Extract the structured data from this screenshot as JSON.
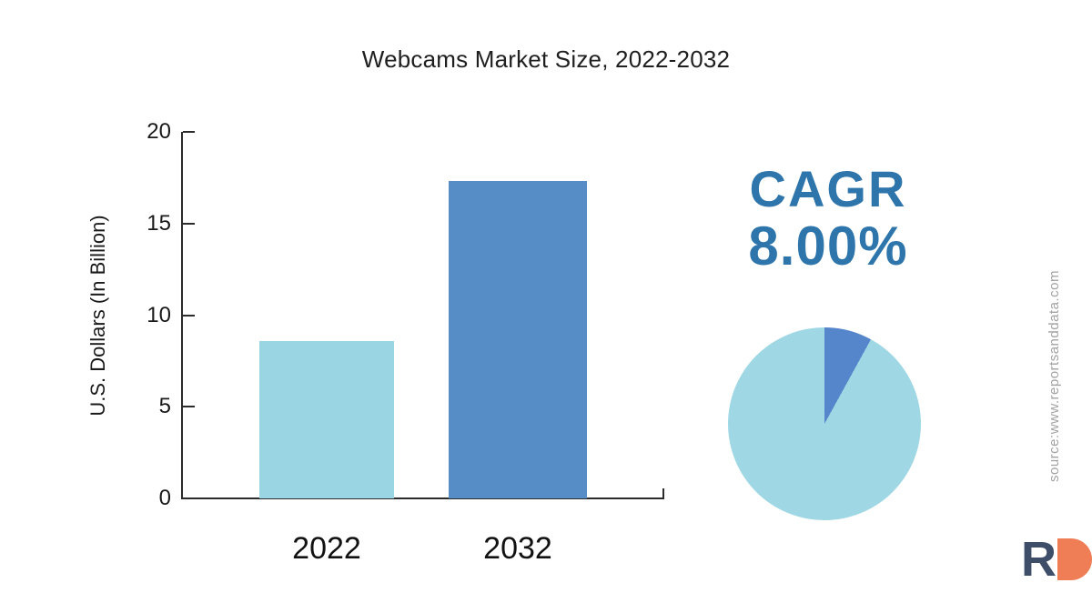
{
  "title": "Webcams Market Size, 2022-2032",
  "cagr": {
    "label": "CAGR",
    "value": "8.00%"
  },
  "source": "source:www.reportsanddata.com",
  "logo": {
    "letter_r": "R",
    "r_color": "#3f4e68",
    "d_color": "#ef7e56"
  },
  "colors": {
    "axis": "#2b2b2b",
    "accent_blue": "#2e75ac",
    "bar_light": "#99d5e2",
    "bar_dark": "#578dc7",
    "pie_light": "#9fd8e4",
    "pie_dark": "#5585ca",
    "source_gray": "#a3a3a3"
  },
  "chart_data": [
    {
      "type": "bar",
      "title": "Webcams Market Size, 2022-2032",
      "categories": [
        "2022",
        "2032"
      ],
      "values": [
        8.6,
        17.3
      ],
      "xlabel": "",
      "ylabel": "U.S. Dollars (In Billion)",
      "ylim": [
        0,
        20
      ],
      "yticks": [
        0,
        5,
        10,
        15,
        20
      ],
      "bar_colors": [
        "#99d5e2",
        "#578dc7"
      ],
      "grid": false,
      "legend": "none"
    },
    {
      "type": "pie",
      "title": "CAGR 8.00%",
      "slices": [
        {
          "label": "CAGR",
          "value": 8,
          "color": "#5585ca"
        },
        {
          "label": "remainder",
          "value": 92,
          "color": "#9fd8e4"
        }
      ],
      "start_angle_deg": 0,
      "direction": "clockwise",
      "legend": "none"
    }
  ]
}
